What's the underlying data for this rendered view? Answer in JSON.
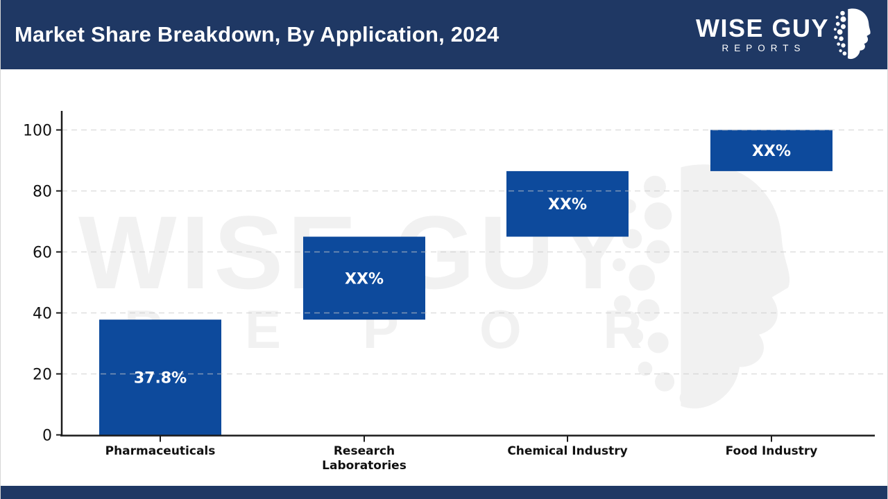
{
  "header": {
    "title": "Market Share Breakdown, By Application, 2024",
    "logo": {
      "line1": "WISE GUY",
      "line2": "REPORTS"
    }
  },
  "watermark": {
    "line1": "WISE GUY",
    "line2": "REPORTS"
  },
  "chart_data": {
    "type": "bar",
    "subtype": "waterfall",
    "title": "Market Share Breakdown, By Application, 2024",
    "categories": [
      "Pharmaceuticals",
      "Research Laboratories",
      "Chemical Industry",
      "Food Industry"
    ],
    "category_label_lines": [
      [
        "Pharmaceuticals"
      ],
      [
        "Research",
        "Laboratories"
      ],
      [
        "Chemical Industry"
      ],
      [
        "Food Industry"
      ]
    ],
    "segments": [
      {
        "category": "Pharmaceuticals",
        "start": 0,
        "end": 37.8,
        "label": "37.8%"
      },
      {
        "category": "Research Laboratories",
        "start": 37.8,
        "end": 65,
        "label": "XX%"
      },
      {
        "category": "Chemical Industry",
        "start": 65,
        "end": 86.5,
        "label": "XX%"
      },
      {
        "category": "Food Industry",
        "start": 86.5,
        "end": 100,
        "label": "XX%"
      }
    ],
    "xlabel": "",
    "ylabel": "",
    "ylim": [
      0,
      100
    ],
    "yticks": [
      0,
      20,
      40,
      60,
      80,
      100
    ],
    "grid": "horizontal-dashed",
    "legend": "none"
  },
  "colors": {
    "header_bg": "#1f3864",
    "footer_bg": "#1f3864",
    "header_text": "#ffffff",
    "bar": "#0d4a9c",
    "bar_label": "#ffffff",
    "grid": "#c9c9c9",
    "axis": "#1a1a1a",
    "tick_label": "#111111",
    "watermark": "#f1f1f1"
  }
}
